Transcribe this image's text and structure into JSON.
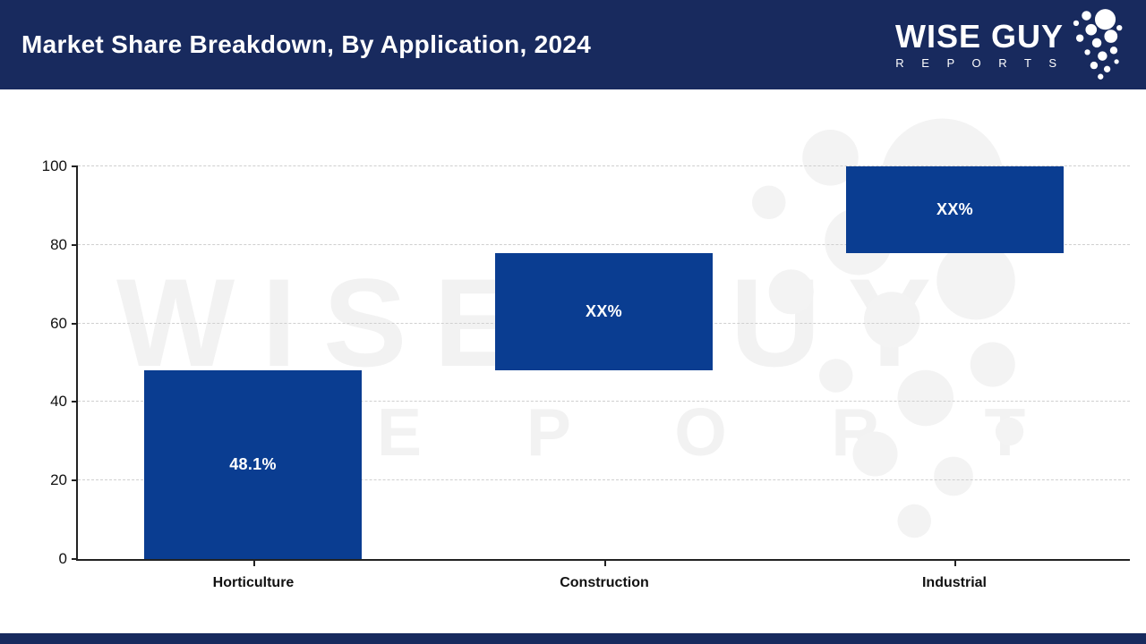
{
  "header": {
    "title": "Market Share Breakdown, By Application, 2024",
    "logo": {
      "line1": "WISE GUY",
      "line2": "R E P O R T S"
    }
  },
  "watermark": {
    "line1": "WISE GUY",
    "line2": "R E P O R T S"
  },
  "colors": {
    "header_navy": "#182a5e",
    "bar_blue": "#0a3d91",
    "gridline": "#cfcfcf",
    "axis": "#222222",
    "watermark_gray": "#f2f2f2"
  },
  "chart_data": {
    "type": "bar",
    "subtype": "floating-segment",
    "title": "Market Share Breakdown, By Application, 2024",
    "categories": [
      "Horticulture",
      "Construction",
      "Industrial"
    ],
    "segments": [
      {
        "category": "Horticulture",
        "from": 0,
        "to": 48.1,
        "label": "48.1%"
      },
      {
        "category": "Construction",
        "from": 48.1,
        "to": 78,
        "label": "XX%"
      },
      {
        "category": "Industrial",
        "from": 78,
        "to": 100,
        "label": "XX%"
      }
    ],
    "xlabel": "",
    "ylabel": "",
    "ylim": [
      0,
      100
    ],
    "yticks": [
      0,
      20,
      40,
      60,
      80,
      100
    ],
    "grid": "dashed-horizontal",
    "legend": "none",
    "bar_color": "#0a3d91",
    "label_color": "#ffffff"
  }
}
